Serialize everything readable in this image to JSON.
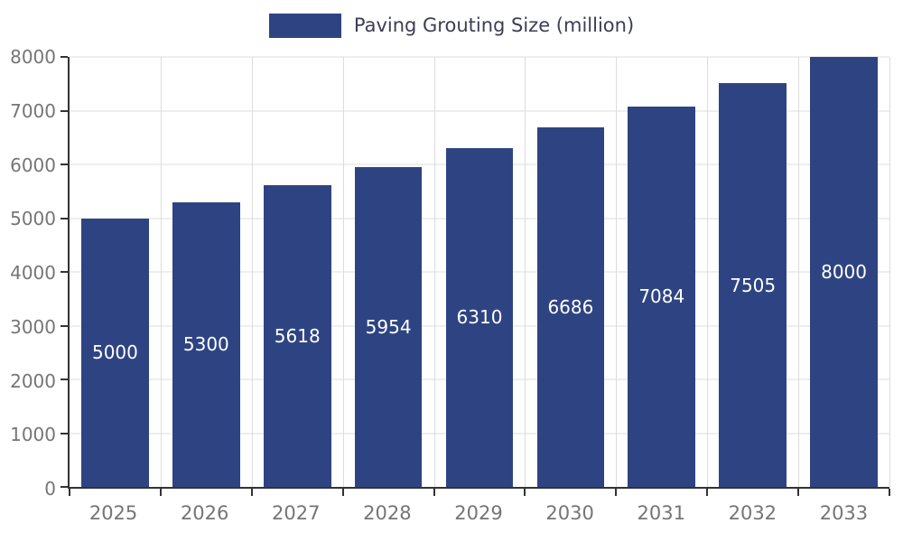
{
  "chart_data": {
    "type": "bar",
    "title": "Paving Grouting Size (million)",
    "categories": [
      "2025",
      "2026",
      "2027",
      "2028",
      "2029",
      "2030",
      "2031",
      "2032",
      "2033"
    ],
    "values": [
      5000,
      5300,
      5618,
      5954,
      6310,
      6686,
      7084,
      7505,
      8000
    ],
    "xlabel": "",
    "ylabel": "",
    "ylim": [
      0,
      8000
    ],
    "yticks": [
      0,
      1000,
      2000,
      3000,
      4000,
      5000,
      6000,
      7000,
      8000
    ],
    "grid": true,
    "legend_position": "top",
    "bar_color": "#2e4482",
    "bar_label_color": "#ffffff",
    "legend_text_color": "#3d3d55",
    "axis_color": "#333333",
    "tick_label_color": "#757575",
    "grid_color": "#dcdcdc"
  }
}
